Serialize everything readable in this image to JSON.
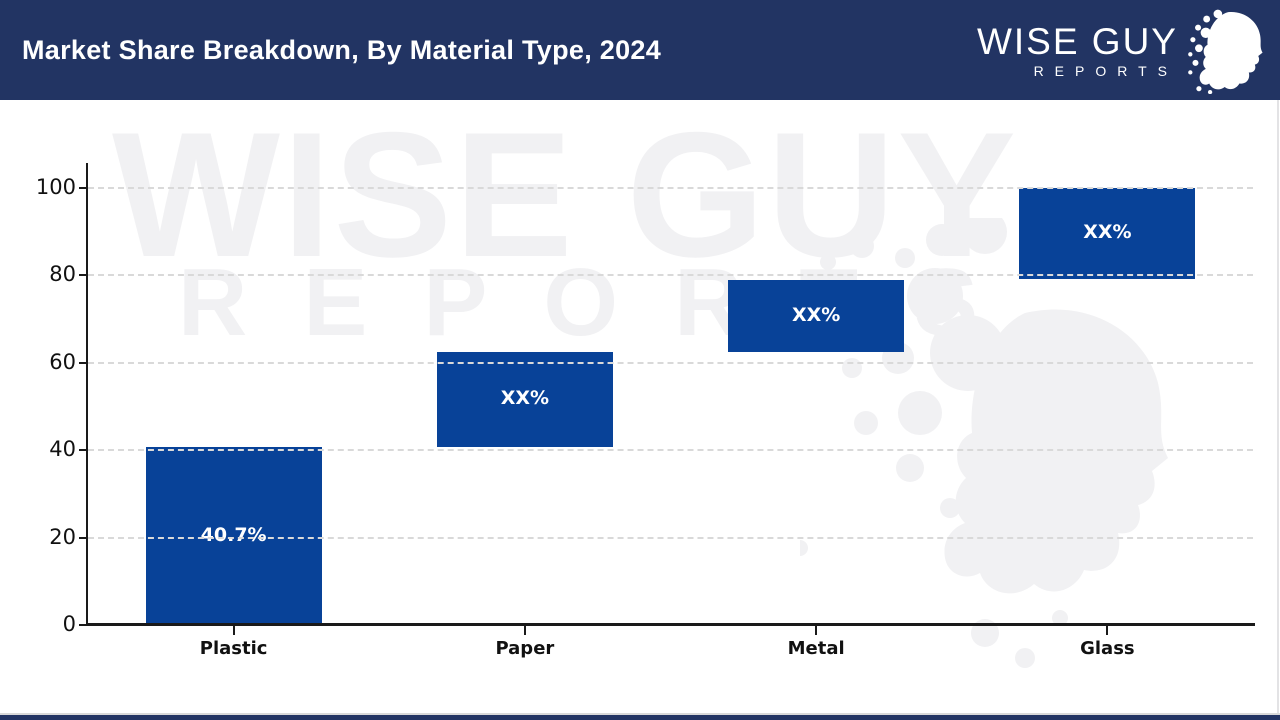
{
  "header": {
    "title": "Market Share Breakdown, By Material Type, 2024",
    "logo": {
      "line1": "WISE GUY",
      "line2": "REPORTS"
    }
  },
  "watermark": {
    "line1": "WISE GUY",
    "line2": "REPORTS"
  },
  "chart_data": {
    "type": "bar",
    "variant": "waterfall",
    "title": "Market Share Breakdown, By Material Type, 2024",
    "categories": [
      "Plastic",
      "Paper",
      "Metal",
      "Glass"
    ],
    "bars": [
      {
        "category": "Plastic",
        "start": 0,
        "end": 40.7,
        "label": "40.7%"
      },
      {
        "category": "Paper",
        "start": 40.7,
        "end": 62.5,
        "label": "XX%"
      },
      {
        "category": "Metal",
        "start": 62.5,
        "end": 78.9,
        "label": "XX%"
      },
      {
        "category": "Glass",
        "start": 79.0,
        "end": 100,
        "label": "XX%"
      }
    ],
    "yticks": [
      0,
      20,
      40,
      60,
      80,
      100
    ],
    "ylim": [
      0,
      105
    ],
    "grid": "dashed-horizontal",
    "legend": null,
    "xlabel": "",
    "ylabel": ""
  },
  "colors": {
    "header_bg": "#223463",
    "bar_blue": "#084298",
    "bar_label": "#ffffff",
    "watermark": "#f1f1f3",
    "grid": "#d9d9d9",
    "axis": "#1a1a1a"
  }
}
